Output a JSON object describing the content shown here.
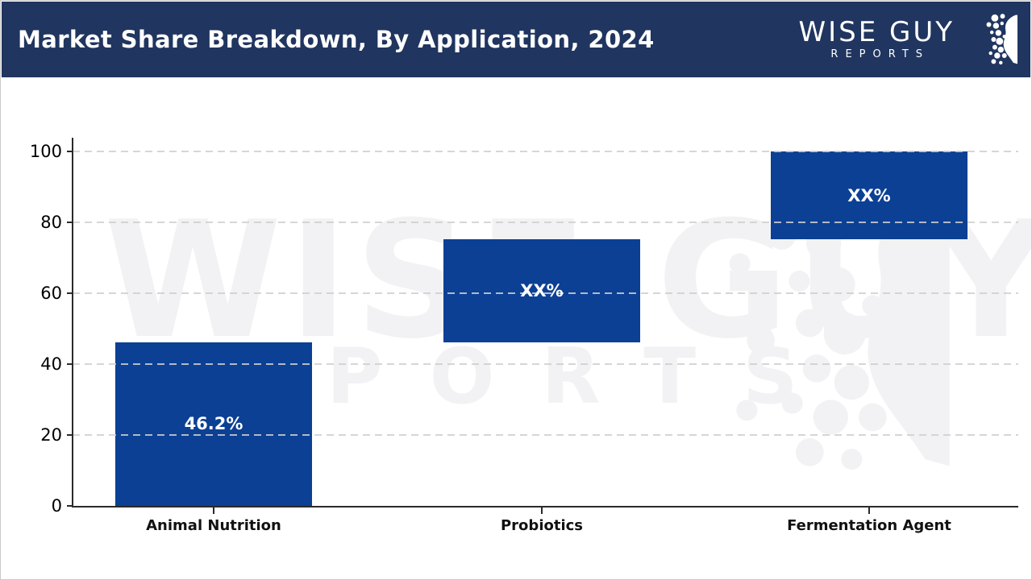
{
  "header": {
    "title": "Market Share Breakdown, By Application, 2024",
    "bg_color": "#20355f"
  },
  "logo": {
    "line1": "WISE GUY",
    "line2": "REPORTS"
  },
  "watermark": {
    "line1": "WISE GUY",
    "line2": "REPORTS"
  },
  "chart_data": {
    "type": "bar",
    "subtype": "floating-segment-waterfall",
    "title": "Market Share Breakdown, By Application, 2024",
    "categories": [
      "Animal Nutrition",
      "Probiotics",
      "Fermentation Agent"
    ],
    "segments": [
      {
        "category": "Animal Nutrition",
        "from": 0,
        "to": 46.2,
        "label": "46.2%"
      },
      {
        "category": "Probiotics",
        "from": 46.2,
        "to": 75.2,
        "label": "XX%"
      },
      {
        "category": "Fermentation Agent",
        "from": 75.2,
        "to": 100,
        "label": "XX%"
      }
    ],
    "yticks": [
      0,
      20,
      40,
      60,
      80,
      100
    ],
    "ylim": [
      0,
      105
    ],
    "xlabel": "",
    "ylabel": "",
    "grid": "dashed-horizontal",
    "legend": "none",
    "bar_color": "#0b4094",
    "bar_label_color": "#ffffff",
    "axis_color": "#2a2a2a",
    "grid_color": "#cfcfcf"
  }
}
